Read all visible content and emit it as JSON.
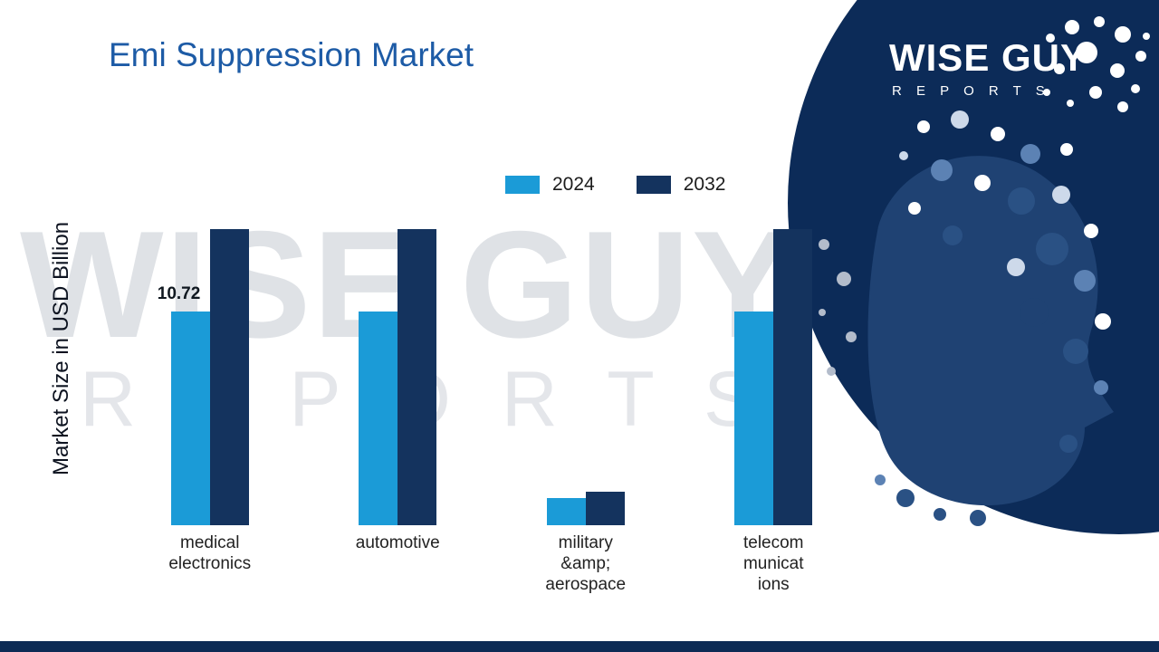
{
  "page": {
    "watermark_line1": "WISE GUY",
    "watermark_line2": "R E P O R T S",
    "bottom_bar_color": "#0d2b55"
  },
  "logo": {
    "name_top": "WISE GUY",
    "name_bottom": "R E P O R T S"
  },
  "chart_data": {
    "type": "bar",
    "title": "Emi Suppression Market",
    "xlabel": "",
    "ylabel": "Market Size in USD Billion",
    "categories": [
      "medical electronics",
      "automotive",
      "military &amp; aerospace",
      "telecommunications"
    ],
    "categories_display": [
      [
        "medical",
        "electronics"
      ],
      [
        "automotive"
      ],
      [
        "military",
        "&amp;",
        "aerospace"
      ],
      [
        "telecom",
        "municat",
        "ions"
      ]
    ],
    "series": [
      {
        "name": "2024",
        "color": "#1b9bd7",
        "values": [
          10.72,
          10.72,
          1.35,
          10.72
        ]
      },
      {
        "name": "2032",
        "color": "#14335e",
        "values": [
          14.85,
          14.85,
          1.7,
          14.85
        ]
      }
    ],
    "ylim": [
      0,
      15
    ],
    "grid": false,
    "legend_position": "top-center",
    "bar_label": {
      "series": "2024",
      "category_index": 0,
      "text": "10.72"
    }
  },
  "colors": {
    "title_blue": "#1d5ba6",
    "bar_2024": "#1b9bd7",
    "bar_2032": "#14335e",
    "corner_navy": "#0c2b58",
    "watermark_gray": "#aab3c2"
  }
}
